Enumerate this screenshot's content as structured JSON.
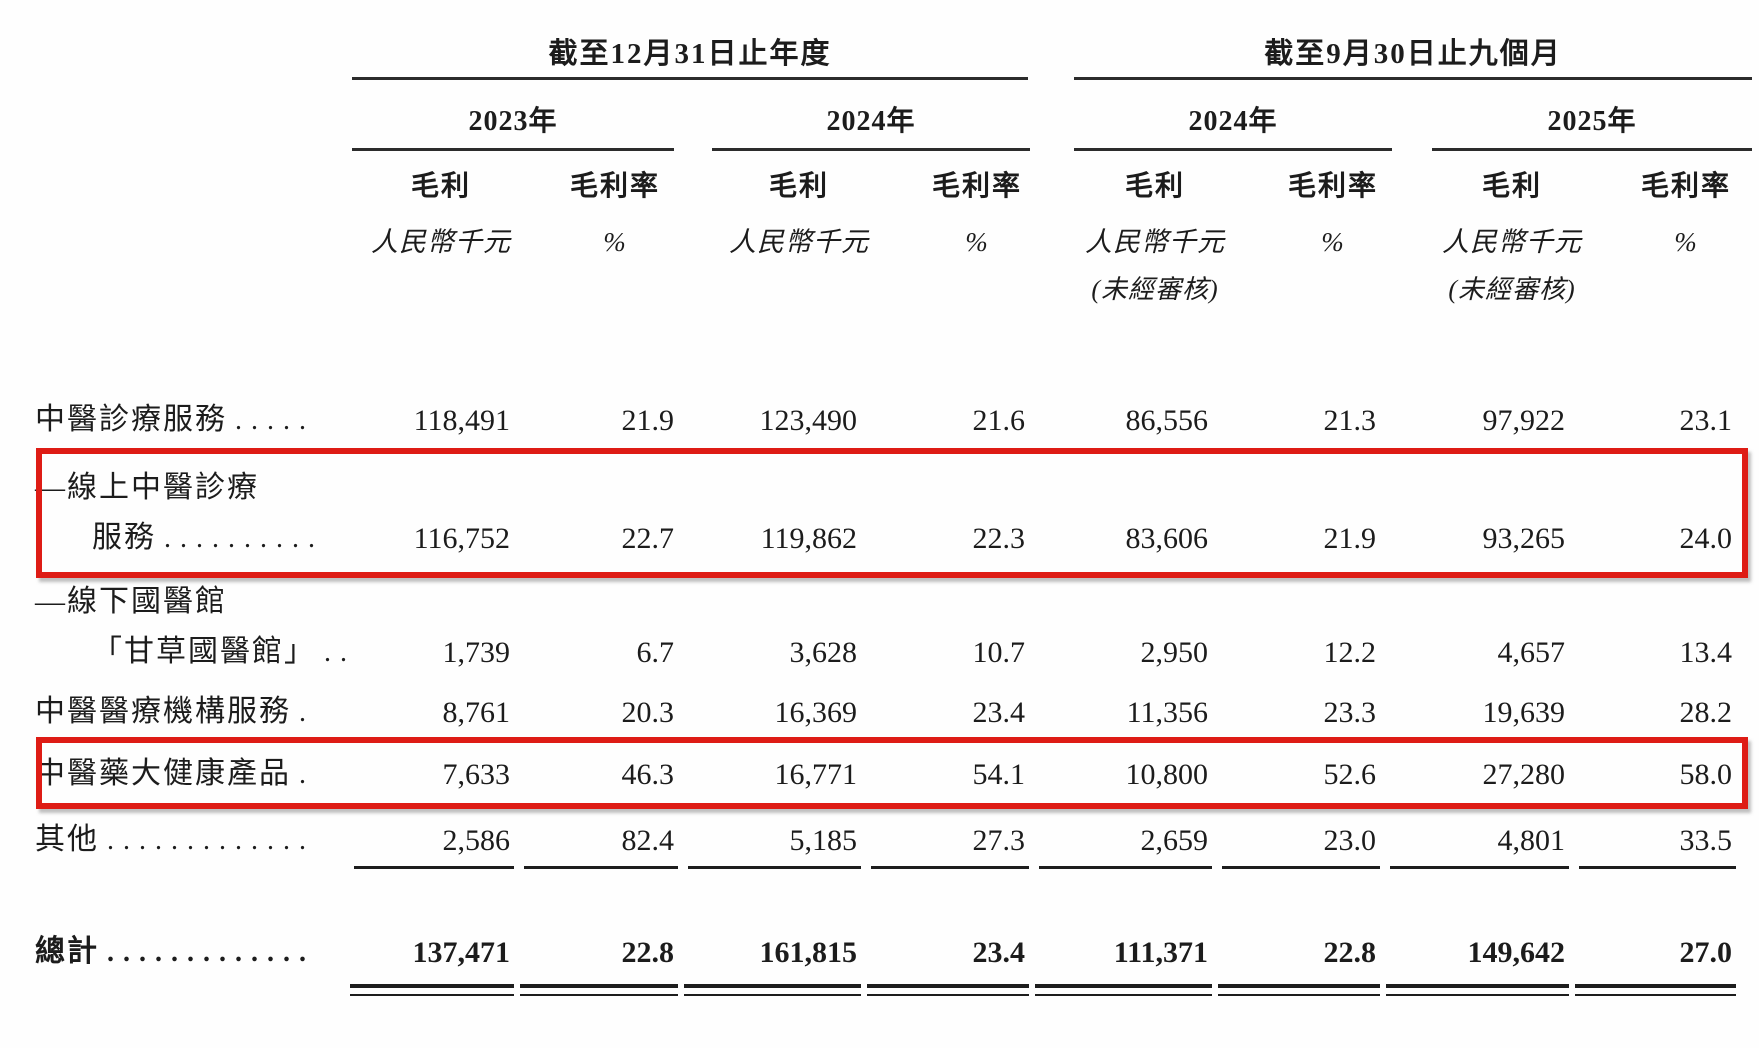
{
  "header": {
    "period_groups": [
      {
        "title": "截至12月31日止年度",
        "years": [
          "2023年",
          "2024年"
        ]
      },
      {
        "title": "截至9月30日止九個月",
        "years": [
          "2024年",
          "2025年"
        ]
      }
    ],
    "col_label_gp": "毛利",
    "col_label_gpm": "毛利率",
    "unit_thousands": "人民幣千元",
    "unit_percent": "%",
    "unaudited": "(未經審核)"
  },
  "highlight_color": "#de1c15",
  "rows": [
    {
      "label": "中醫診療服務",
      "dots": ".....",
      "values": [
        "118,491",
        "21.9",
        "123,490",
        "21.6",
        "86,556",
        "21.3",
        "97,922",
        "23.1"
      ]
    },
    {
      "line1": "—線上中醫診療",
      "label": "服務",
      "dots": "..........",
      "highlighted": true,
      "values": [
        "116,752",
        "22.7",
        "119,862",
        "22.3",
        "83,606",
        "21.9",
        "93,265",
        "24.0"
      ]
    },
    {
      "line1": "—線下國醫館",
      "label": "「甘草國醫館」",
      "dots": "..",
      "values": [
        "1,739",
        "6.7",
        "3,628",
        "10.7",
        "2,950",
        "12.2",
        "4,657",
        "13.4"
      ]
    },
    {
      "label": "中醫醫療機構服務",
      "dots": ".",
      "values": [
        "8,761",
        "20.3",
        "16,369",
        "23.4",
        "11,356",
        "23.3",
        "19,639",
        "28.2"
      ]
    },
    {
      "label": "中醫藥大健康產品",
      "dots": ".",
      "highlighted": true,
      "values": [
        "7,633",
        "46.3",
        "16,771",
        "54.1",
        "10,800",
        "52.6",
        "27,280",
        "58.0"
      ]
    },
    {
      "label": "其他",
      "dots": ".............",
      "values": [
        "2,586",
        "82.4",
        "5,185",
        "27.3",
        "2,659",
        "23.0",
        "4,801",
        "33.5"
      ]
    },
    {
      "label": "總計",
      "dots": ".............",
      "total": true,
      "values": [
        "137,471",
        "22.8",
        "161,815",
        "23.4",
        "111,371",
        "22.8",
        "149,642",
        "27.0"
      ]
    }
  ]
}
